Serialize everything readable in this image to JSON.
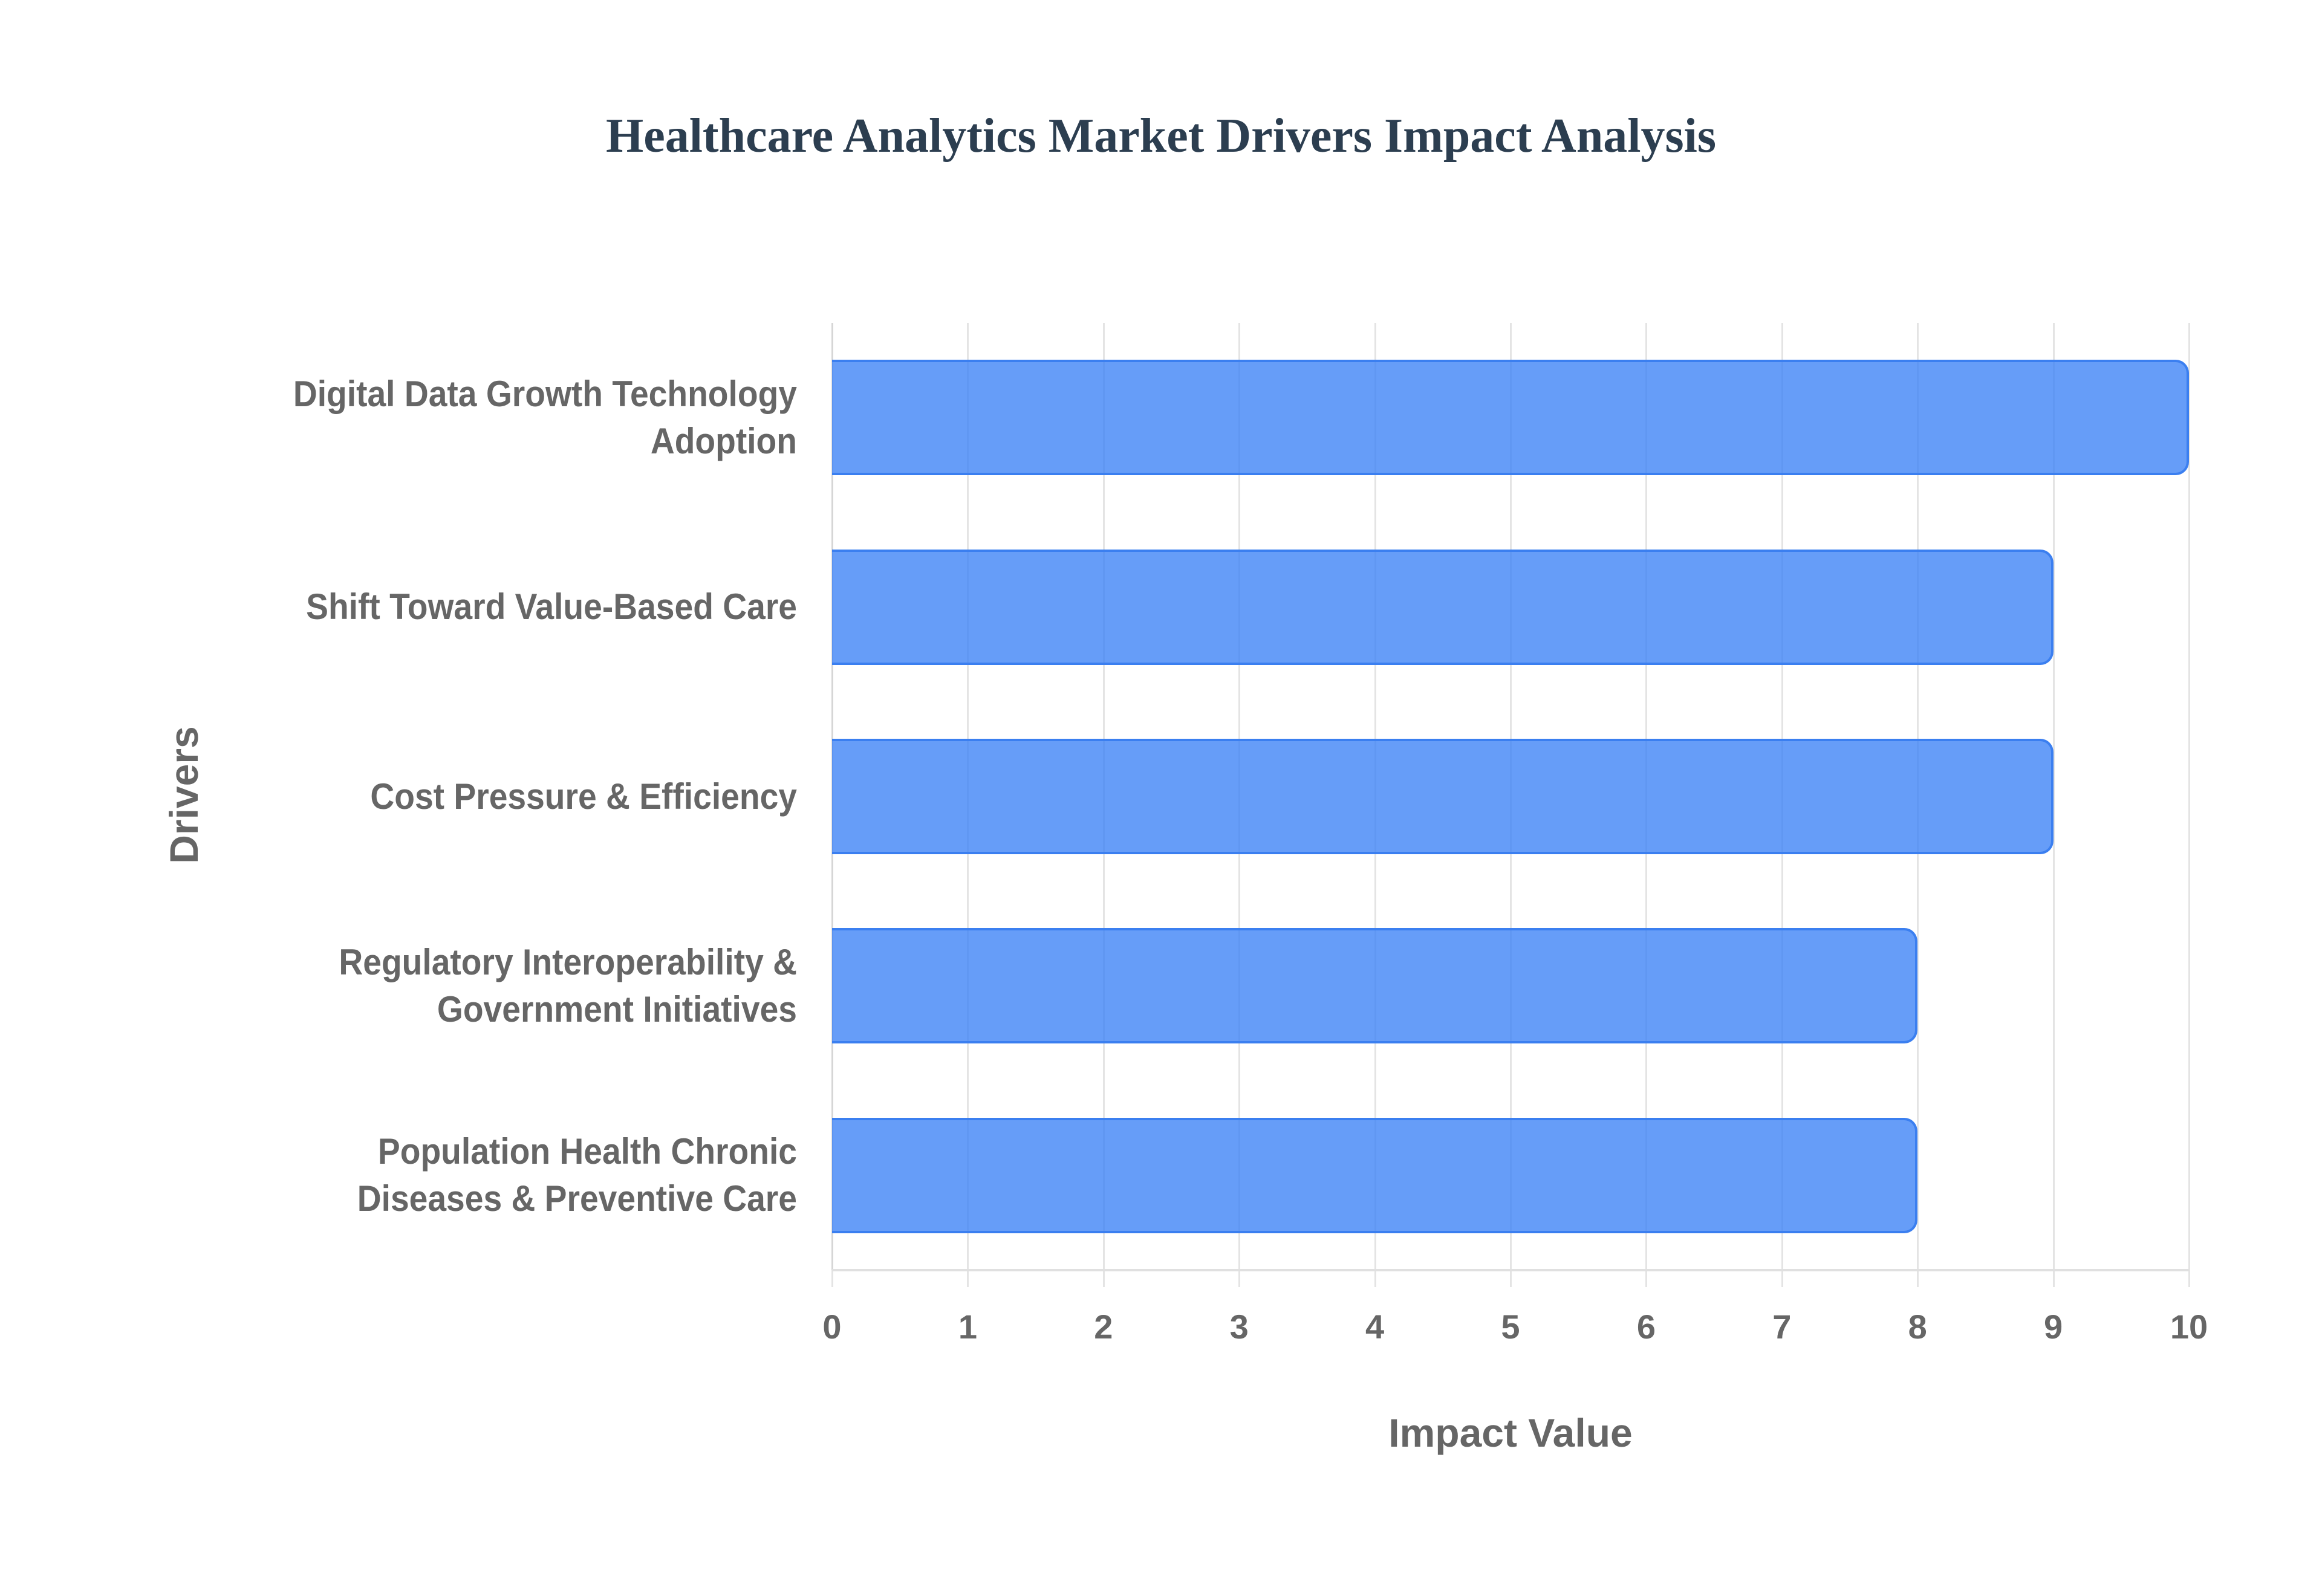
{
  "chart_data": {
    "type": "bar",
    "orientation": "horizontal",
    "title": "Healthcare Analytics Market Drivers Impact Analysis",
    "xlabel": "Impact Value",
    "ylabel": "Drivers",
    "categories": [
      "Digital Data Growth Technology Adoption",
      "Shift Toward Value-Based Care",
      "Cost Pressure & Efficiency",
      "Regulatory Interoperability & Government Initiatives",
      "Population Health Chronic Diseases & Preventive Care"
    ],
    "values": [
      10,
      9,
      9,
      8,
      8
    ],
    "xlim": [
      0,
      10
    ],
    "x_ticks": [
      "0",
      "1",
      "2",
      "3",
      "4",
      "5",
      "6",
      "7",
      "8",
      "9",
      "10"
    ],
    "grid": true,
    "legend": null,
    "bar_color": "#3b82f6"
  },
  "labels": {
    "title": "Healthcare Analytics Market Drivers Impact Analysis",
    "x_axis_title": "Impact Value",
    "y_axis_title": "Drivers",
    "categories": [
      {
        "line1": "Digital Data Growth Technology",
        "line2": "Adoption"
      },
      {
        "line1": "Shift Toward Value-Based Care",
        "line2": ""
      },
      {
        "line1": "Cost Pressure & Efficiency",
        "line2": ""
      },
      {
        "line1": "Regulatory Interoperability &",
        "line2": "Government Initiatives"
      },
      {
        "line1": "Population Health Chronic",
        "line2": "Diseases & Preventive Care"
      }
    ],
    "ticks": [
      "0",
      "1",
      "2",
      "3",
      "4",
      "5",
      "6",
      "7",
      "8",
      "9",
      "10"
    ]
  }
}
